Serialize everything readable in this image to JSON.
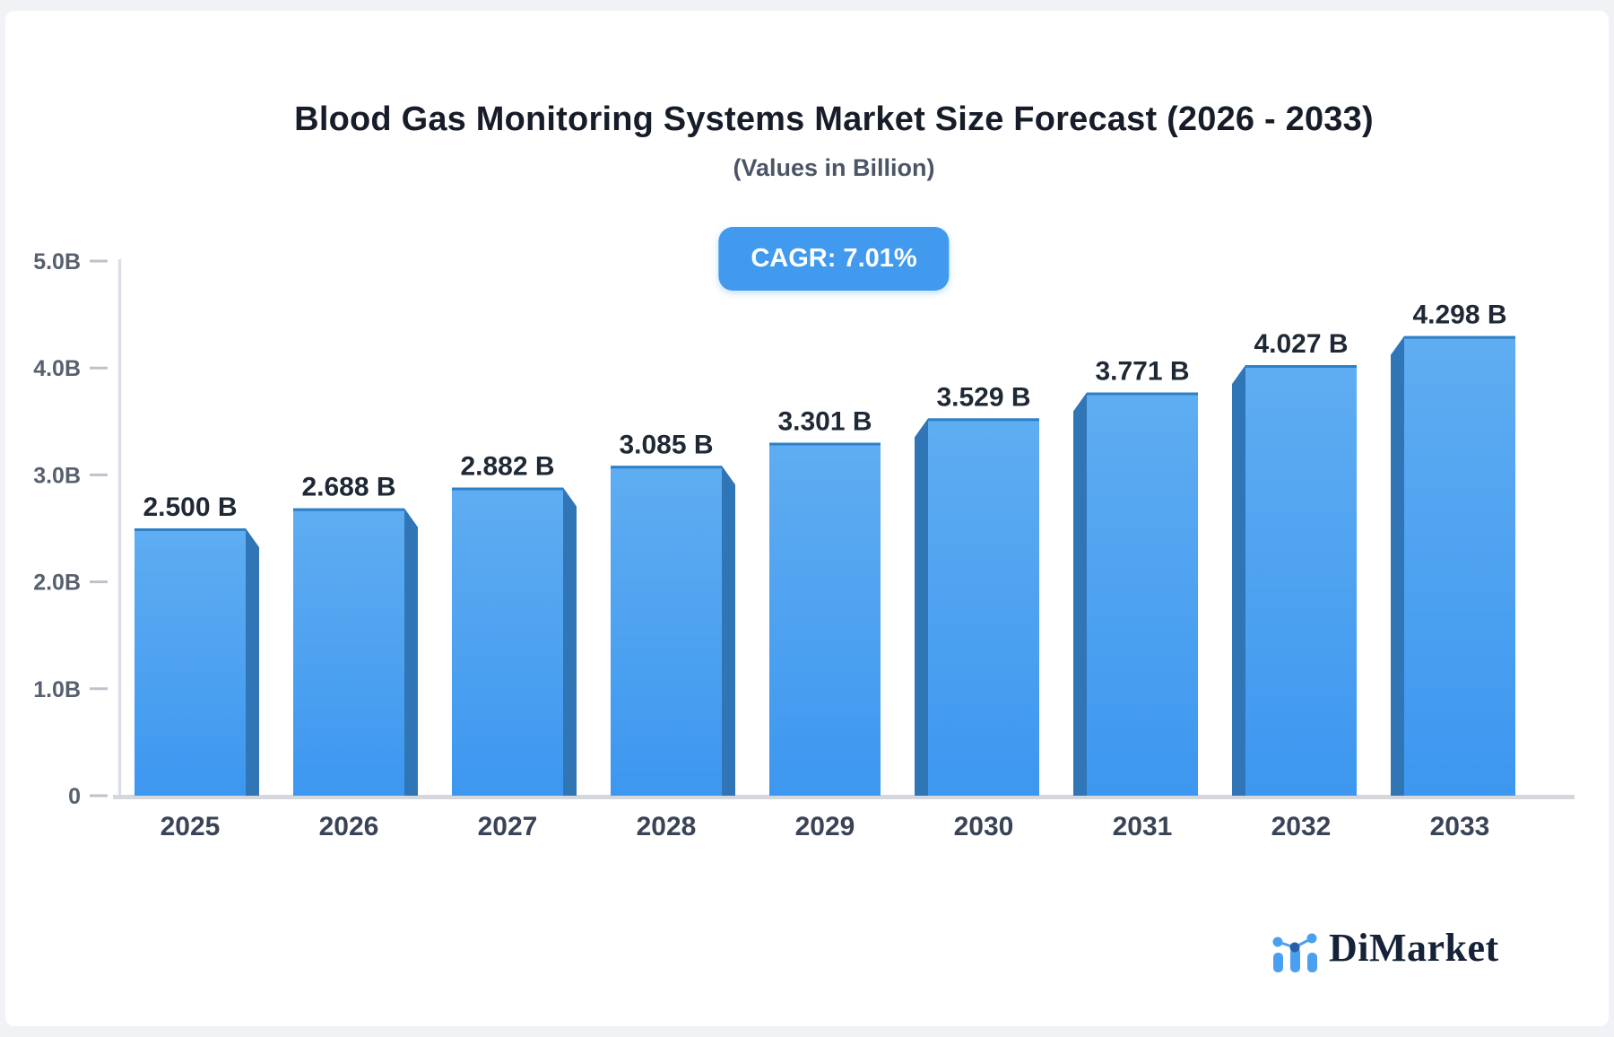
{
  "page": {
    "title": "Blood Gas Monitoring Systems Market Size Forecast (2026 - 2033)",
    "subtitle": "(Values in Billion)",
    "cagr_badge": "CAGR: 7.01%"
  },
  "brand": {
    "name": "DiMarket",
    "icon": "bar-chart-logo-icon"
  },
  "colors": {
    "accent": "#419aee",
    "bar_face_top": "#5fadf1",
    "bar_face_bottom": "#3d97f0",
    "bar_side": "#3076b6",
    "bar_top_edge": "#2d80c7",
    "axis_line": "#dcdfe5",
    "baseline": "#d4d8dd",
    "tick_dash": "#bdc3cb",
    "title_text": "#161d29",
    "subtitle_text": "#4b5566",
    "value_label_text": "#1f2835",
    "x_label_text": "#3a4457",
    "y_label_text": "#57606e",
    "logo_text": "#152238",
    "logo_icon_blue": "#4aa0f0",
    "logo_icon_dark": "#2b5ea6"
  },
  "chart_data": {
    "type": "bar",
    "title": "Blood Gas Monitoring Systems Market Size Forecast (2026 - 2033)",
    "subtitle": "(Values in Billion)",
    "annotation": "CAGR: 7.01%",
    "categories": [
      "2025",
      "2026",
      "2027",
      "2028",
      "2029",
      "2030",
      "2031",
      "2032",
      "2033"
    ],
    "values": [
      2.5,
      2.688,
      2.882,
      3.085,
      3.301,
      3.529,
      3.771,
      4.027,
      4.298
    ],
    "value_labels": [
      "2.500 B",
      "2.688 B",
      "2.882 B",
      "3.085 B",
      "3.301 B",
      "3.529 B",
      "3.771 B",
      "4.027 B",
      "4.298 B"
    ],
    "xlabel": "",
    "ylabel": "",
    "ylim": [
      0,
      5.0
    ],
    "y_ticks": [
      {
        "label": "5.0B",
        "value": 5.0
      },
      {
        "label": "4.0B",
        "value": 4.0
      },
      {
        "label": "3.0B",
        "value": 3.0
      },
      {
        "label": "2.0B",
        "value": 2.0
      },
      {
        "label": "1.0B",
        "value": 1.0
      },
      {
        "label": "0",
        "value": 0
      }
    ],
    "grid": false,
    "legend": false,
    "style": "3d-perspective-bars-center-vanishing"
  }
}
